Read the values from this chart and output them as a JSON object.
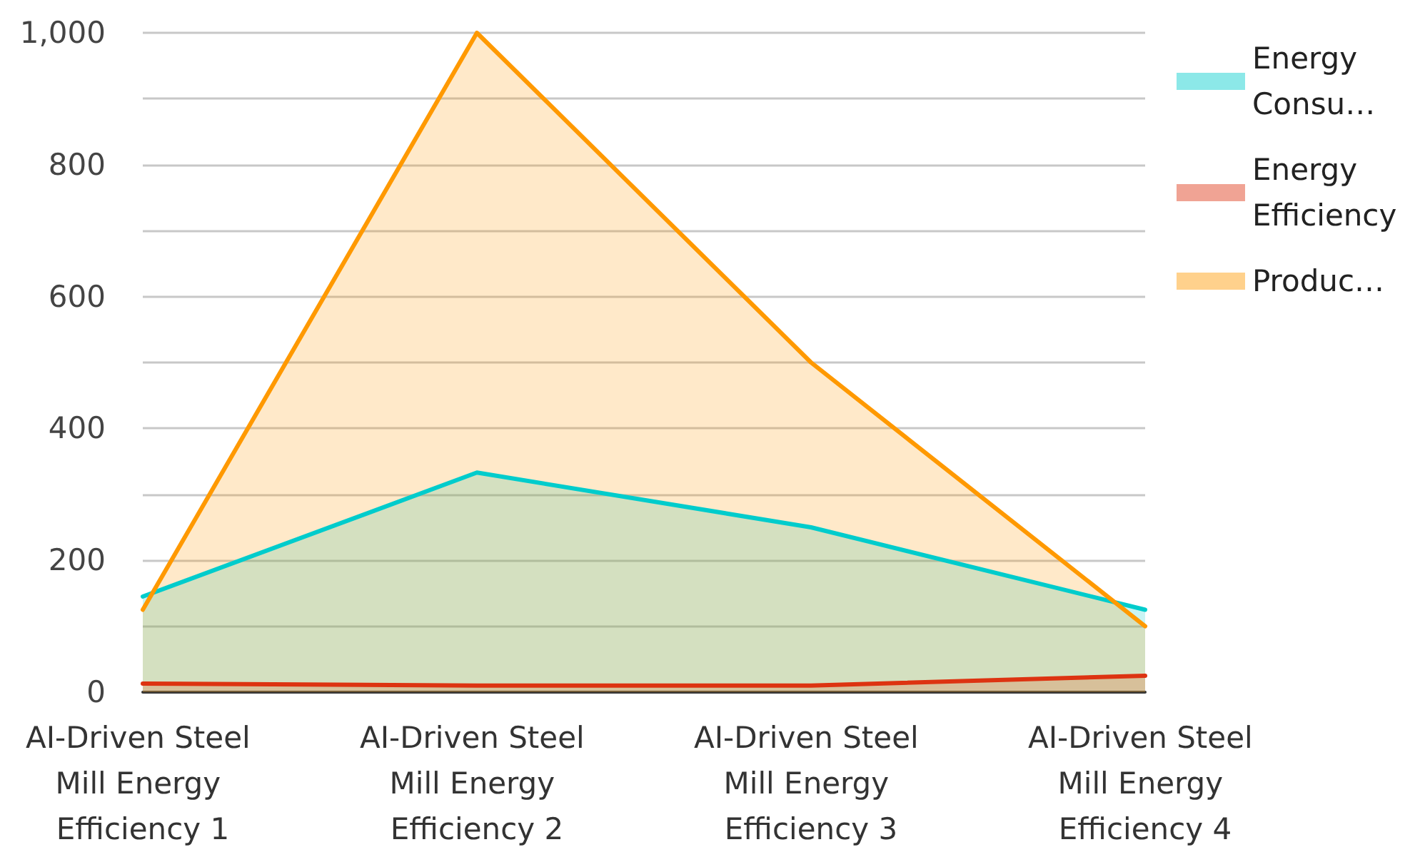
{
  "chart_data": {
    "type": "area",
    "categories": [
      "AI-Driven Steel Mill Energy Efficiency 1",
      "AI-Driven Steel Mill Energy Efficiency 2",
      "AI-Driven Steel Mill Energy Efficiency 3",
      "AI-Driven Steel Mill Energy Efficiency 4"
    ],
    "series": [
      {
        "name": "Energy Consu…",
        "color": "#00cccc",
        "values": [
          145,
          333,
          250,
          125
        ]
      },
      {
        "name": "Energy Efficiency",
        "color": "#dd3311",
        "values": [
          13,
          10,
          10,
          25
        ]
      },
      {
        "name": "Produc…",
        "color": "#ff9900",
        "values": [
          125,
          1000,
          500,
          100
        ]
      }
    ],
    "ylim": [
      0,
      1000
    ],
    "yticks": [
      0,
      {
        "value": 100,
        "label": null
      },
      200,
      {
        "value": 300,
        "label": null
      },
      400,
      {
        "value": 500,
        "label": null
      },
      600,
      {
        "value": 700,
        "label": null
      },
      800,
      {
        "value": 900,
        "label": null
      },
      {
        "value": 1000,
        "label": "1,000"
      }
    ],
    "grid": "y",
    "legend": "top right",
    "marker": "none",
    "line_style": "solid"
  }
}
